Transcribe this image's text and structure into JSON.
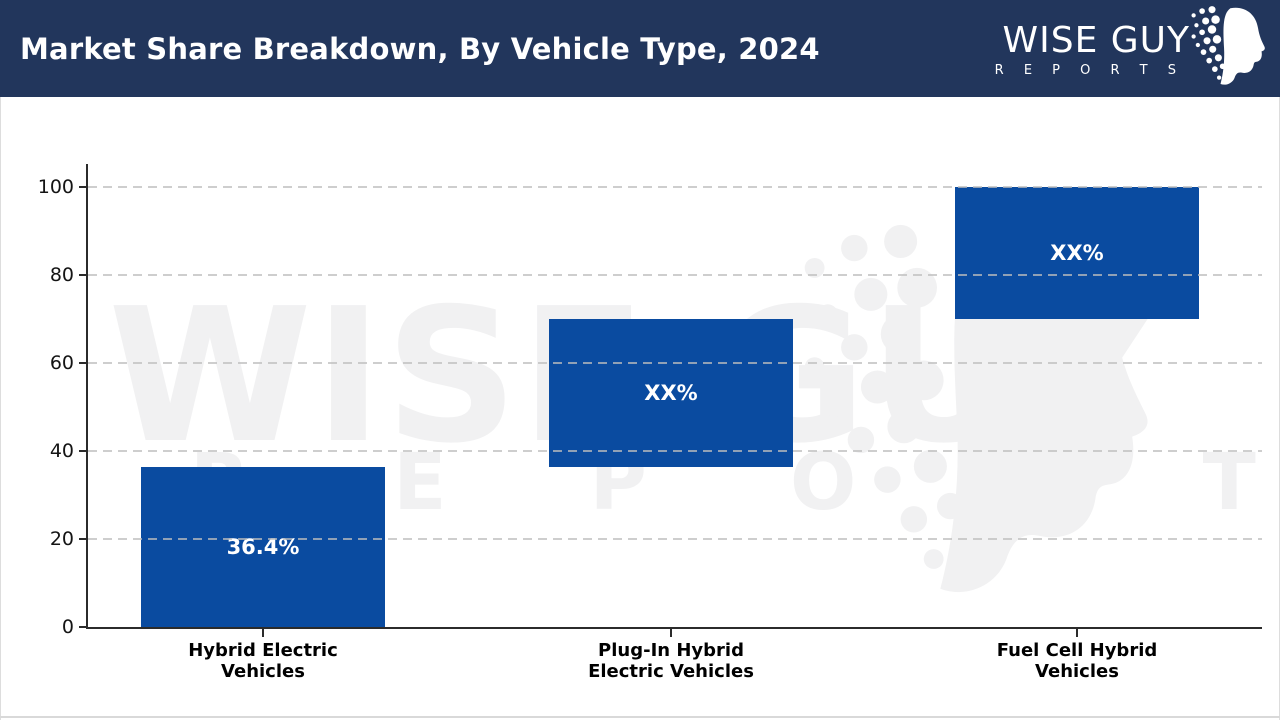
{
  "header": {
    "title": "Market Share Breakdown, By Vehicle Type, 2024",
    "logo_line1": "WISE GUY",
    "logo_line2": "R E P O R T S"
  },
  "watermark": {
    "line1": "WISE GUY",
    "line2": "R E P O R T S"
  },
  "colors": {
    "header_bg": "#22365c",
    "bar": "#0a4ba0",
    "axis": "#2b2b2b",
    "watermark": "#f1f1f2",
    "bar_label": "#ffffff"
  },
  "chart_data": {
    "type": "bar",
    "subtype": "waterfall-style floating segment bars",
    "title": "Market Share Breakdown, By Vehicle Type, 2024",
    "categories": [
      "Hybrid Electric Vehicles",
      "Plug-In Hybrid Electric Vehicles",
      "Fuel Cell Hybrid Vehicles"
    ],
    "category_lines": [
      [
        "Hybrid Electric",
        "Vehicles"
      ],
      [
        "Plug-In Hybrid",
        "Electric Vehicles"
      ],
      [
        "Fuel Cell Hybrid",
        "Vehicles"
      ]
    ],
    "segments": [
      {
        "category": "Hybrid Electric Vehicles",
        "start": 0,
        "end": 36.4,
        "label": "36.4%"
      },
      {
        "category": "Plug-In Hybrid Electric Vehicles",
        "start": 36.4,
        "end": 70,
        "label": "XX%"
      },
      {
        "category": "Fuel Cell Hybrid Vehicles",
        "start": 70,
        "end": 100,
        "label": "XX%"
      }
    ],
    "xlabel": "",
    "ylabel": "",
    "yticks": [
      0,
      20,
      40,
      60,
      80,
      100
    ],
    "ylim": [
      0,
      105
    ],
    "grid": "horizontal dashed gridlines at each y tick",
    "legend": "none"
  }
}
